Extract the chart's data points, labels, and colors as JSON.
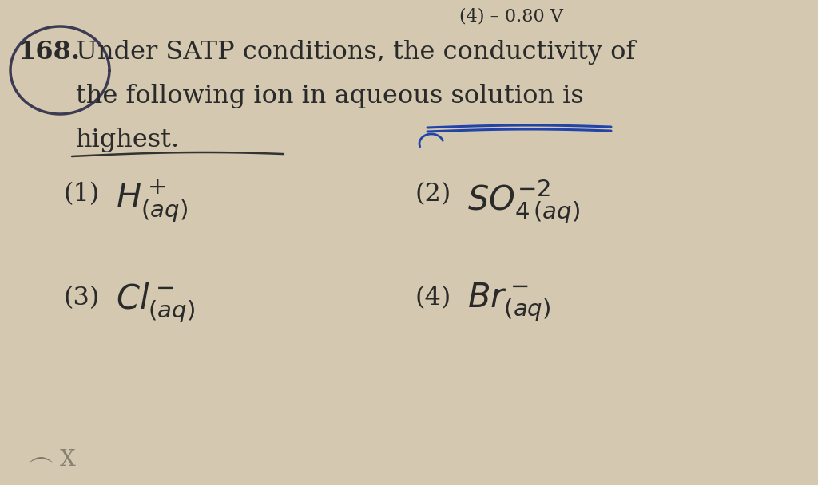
{
  "bg_color": "#d4c9b0",
  "text_color": "#2a2a2a",
  "dark_color": "#1a1a2e",
  "question_num": "168.",
  "line1": "Under SATP conditions, the conductivity of",
  "line2": "the following ion in aqueous solution is",
  "line3": "highest.",
  "top_fragment": "(4) – 0.80 V",
  "opt1_label": "(1)",
  "opt1_ion": "$H^+_{(aq)}$",
  "opt2_label": "(2)",
  "opt2_ion": "$SO^{\\,-2}_{4\\,(aq)}$",
  "opt3_label": "(3)",
  "opt3_ion": "$Cl^-_{(aq)}$",
  "opt4_label": "(4)",
  "opt4_ion": "$Br^-_{(aq)}$",
  "font_size_body": 23,
  "font_size_ion": 30,
  "font_size_label": 23,
  "font_size_top": 16
}
